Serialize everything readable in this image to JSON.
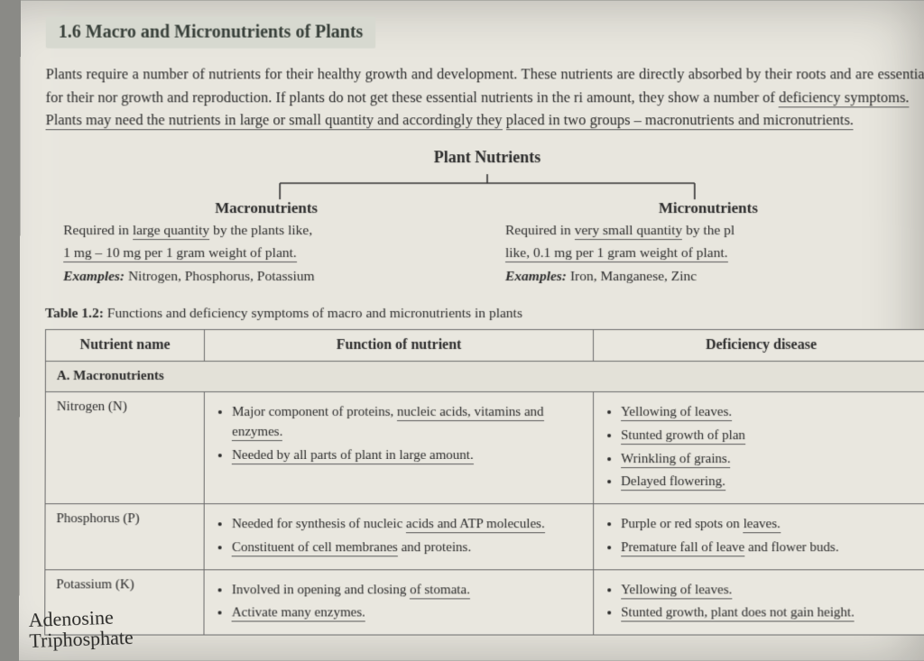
{
  "section_number": "1.6",
  "section_title": "Macro and Micronutrients of Plants",
  "paragraph_parts": {
    "p1_a": "Plants require a number of nutrients for their healthy growth and development.",
    "p1_b": "These nutrients are directly absorbed by their roots and are essential for their nor",
    "p1_c": "growth and reproduction. If plants do not get these essential nutrients in the ri",
    "p1_d": "amount, they show a number of ",
    "p1_d2": "deficiency symptoms.",
    "p1_e": "Plants may need the nutrients in large or small quantity and accordingly they",
    "p1_f": "placed in two groups – macronutrients and micronutrients."
  },
  "tree": {
    "root": "Plant Nutrients",
    "left": {
      "title": "Macronutrients",
      "l1a": "Required in ",
      "l1b": "large quantity",
      "l1c": " by the plants like,",
      "l2": "1 mg – 10 mg per 1 gram weight of plant.",
      "l3a": "Examples:",
      "l3b": " Nitrogen, Phosphorus, Potassium"
    },
    "right": {
      "title": "Micronutrients",
      "l1a": "Required in ",
      "l1b": "very small quantity",
      "l1c": " by the pl",
      "l2": "like, 0.1 mg per 1 gram weight of plant.",
      "l3a": "Examples:",
      "l3b": " Iron, Manganese, Zinc"
    }
  },
  "table": {
    "caption_a": "Table 1.2:",
    "caption_b": " Functions and deficiency symptoms of macro and micronutrients in plants",
    "headers": [
      "Nutrient name",
      "Function of nutrient",
      "Deficiency disease"
    ],
    "group": "A. Macronutrients",
    "rows": [
      {
        "name": "Nitrogen (N)",
        "fn": [
          {
            "a": "Major component of proteins, ",
            "u": "nucleic acids, vitamins and enzymes.",
            "b": ""
          },
          {
            "a": "",
            "u": "Needed by all parts of plant in large amount.",
            "b": ""
          }
        ],
        "def": [
          {
            "a": "",
            "u": "Yellowing of leaves.",
            "b": ""
          },
          {
            "a": "",
            "u": "Stunted growth of plan",
            "b": ""
          },
          {
            "a": "",
            "u": "Wrinkling of grains.",
            "b": ""
          },
          {
            "a": "",
            "u": "Delayed flowering.",
            "b": ""
          }
        ]
      },
      {
        "name": "Phosphorus (P)",
        "fn": [
          {
            "a": "Needed for synthesis of nucleic ",
            "u": "acids and ATP molecules.",
            "b": ""
          },
          {
            "a": "",
            "u": "Constituent of cell membranes",
            "b": " and proteins."
          }
        ],
        "def": [
          {
            "a": "Purple or red spots on ",
            "u": "leaves.",
            "b": ""
          },
          {
            "a": "",
            "u": "Premature fall of leave",
            "b": " and flower buds."
          }
        ]
      },
      {
        "name": "Potassium (K)",
        "fn": [
          {
            "a": "Involved in opening and closing ",
            "u": "of stomata.",
            "b": ""
          },
          {
            "a": "",
            "u": "Activate many enzymes.",
            "b": ""
          }
        ],
        "def": [
          {
            "a": "",
            "u": "Yellowing of leaves.",
            "b": ""
          },
          {
            "a": "",
            "u": "Stunted growth, plant does not gain height.",
            "b": ""
          }
        ]
      }
    ]
  },
  "handwriting_l1": "Adenosine",
  "handwriting_l2": "Triphosphate"
}
